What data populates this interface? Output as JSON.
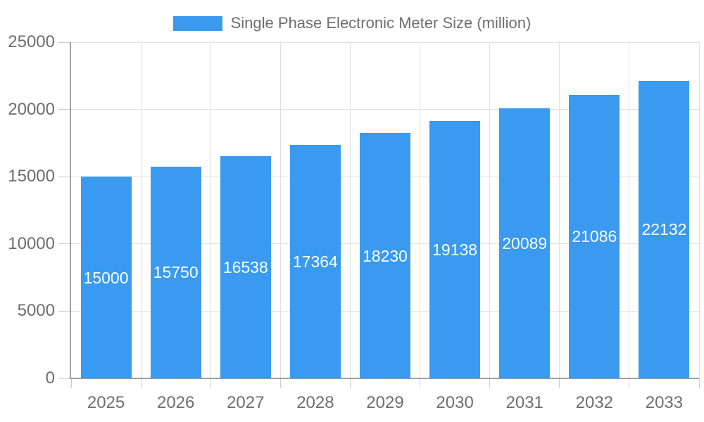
{
  "chart_data": {
    "type": "bar",
    "title": "",
    "xlabel": "",
    "ylabel": "",
    "categories": [
      "2025",
      "2026",
      "2027",
      "2028",
      "2029",
      "2030",
      "2031",
      "2032",
      "2033"
    ],
    "series": [
      {
        "name": "Single Phase Electronic Meter Size (million)",
        "values": [
          15000,
          15750,
          16538,
          17364,
          18230,
          19138,
          20089,
          21086,
          22132
        ],
        "color": "#399af0"
      }
    ],
    "value_labels": [
      "15000",
      "15750",
      "16538",
      "17364",
      "18230",
      "19138",
      "20089",
      "21086",
      "22132"
    ],
    "value_label_position": "inside-center",
    "ylim": [
      0,
      25000
    ],
    "y_ticks": [
      0,
      5000,
      10000,
      15000,
      20000,
      25000
    ],
    "y_tick_labels": [
      "0",
      "5000",
      "10000",
      "15000",
      "20000",
      "25000"
    ],
    "grid": true,
    "legend_position": "top-center",
    "colors": {
      "bar": "#399af0",
      "axis_line": "#a0a0a0",
      "grid_line": "#e0e0e0",
      "tick_line": "#cccccc",
      "axis_text": "#6e6e6e",
      "legend_text": "#6e6e6e",
      "value_label_text": "#ffffff",
      "background": "#ffffff"
    }
  }
}
